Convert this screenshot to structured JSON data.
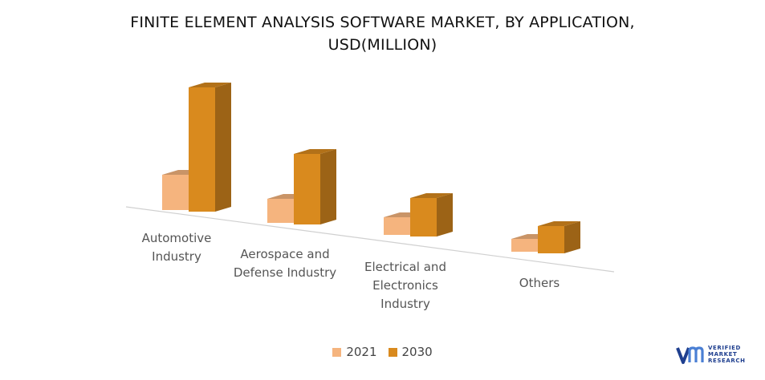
{
  "title_line1": "FINITE ELEMENT ANALYSIS SOFTWARE MARKET, BY APPLICATION,",
  "title_line2": "USD(MILLION)",
  "chart_data": {
    "type": "bar",
    "title": "FINITE ELEMENT ANALYSIS SOFTWARE MARKET, BY APPLICATION, USD(MILLION)",
    "categories": [
      [
        "Automotive",
        "Industry"
      ],
      [
        "Aerospace and",
        "Defense Industry"
      ],
      [
        "Electrical and",
        "Electronics",
        "Industry"
      ],
      [
        "Others"
      ]
    ],
    "series": [
      {
        "name": "2021",
        "values": [
          44,
          30,
          22,
          16
        ]
      },
      {
        "name": "2030",
        "values": [
          155,
          88,
          48,
          34
        ]
      }
    ],
    "colors": {
      "2021": "#F5B47E",
      "2030": "#D98A1E"
    },
    "legend_position": "bottom",
    "grid": false,
    "style": "3d-column"
  },
  "legend": [
    {
      "label": "2021",
      "color": "#F5B47E"
    },
    {
      "label": "2030",
      "color": "#D98A1E"
    }
  ],
  "logo": {
    "line1": "VERIFIED",
    "line2": "MARKET",
    "line3": "RESEARCH",
    "brand_color": "#1f3f8f"
  }
}
